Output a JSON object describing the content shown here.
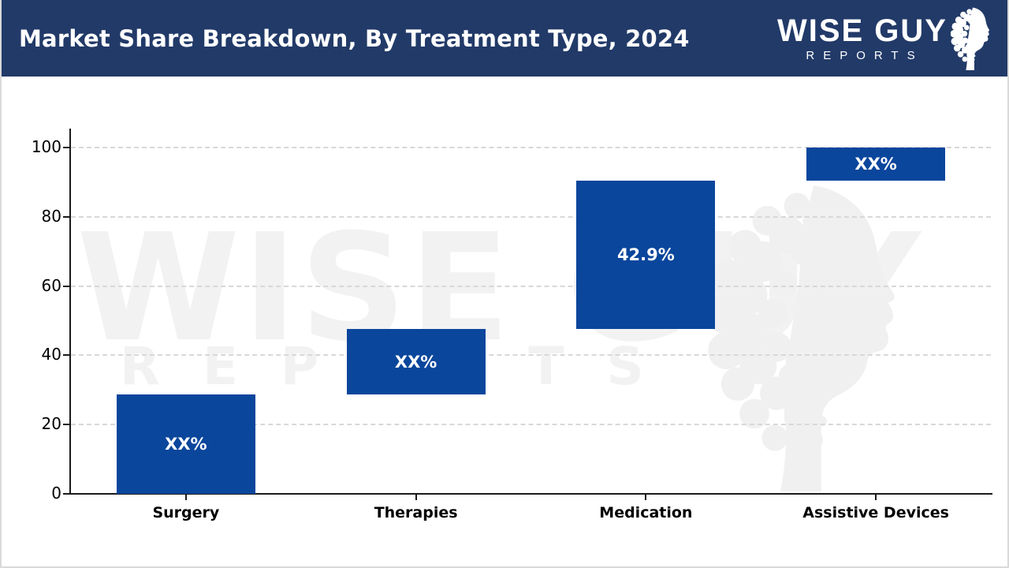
{
  "header": {
    "title": "Market Share Breakdown, By Treatment Type, 2024",
    "logo": {
      "line1": "WISE GUY",
      "line2": "REPORTS"
    }
  },
  "watermark": {
    "line1": "WISE GUY",
    "line2": "REPORTS"
  },
  "chart_data": {
    "type": "bar",
    "subtype": "waterfall",
    "title": "Market Share Breakdown, By Treatment Type, 2024",
    "categories": [
      "Surgery",
      "Therapies",
      "Medication",
      "Assistive Devices"
    ],
    "segments": [
      {
        "category": "Surgery",
        "start": 0,
        "end": 28.6,
        "label": "XX%"
      },
      {
        "category": "Therapies",
        "start": 28.6,
        "end": 47.6,
        "label": "XX%"
      },
      {
        "category": "Medication",
        "start": 47.6,
        "end": 90.5,
        "label": "42.9%"
      },
      {
        "category": "Assistive Devices",
        "start": 90.5,
        "end": 100,
        "label": "XX%"
      }
    ],
    "xlabel": "",
    "ylabel": "",
    "ylim": [
      0,
      100
    ],
    "yticks": [
      0,
      20,
      40,
      60,
      80,
      100
    ],
    "grid": "dashed-horizontal",
    "legend": "none",
    "bar_color": "#0a469c",
    "bar_label_color": "#ffffff"
  },
  "colors": {
    "header_bg": "#223a68",
    "watermark": "#f2f2f3",
    "gridline": "#d8d8d8",
    "axis": "#1a1a1a"
  }
}
